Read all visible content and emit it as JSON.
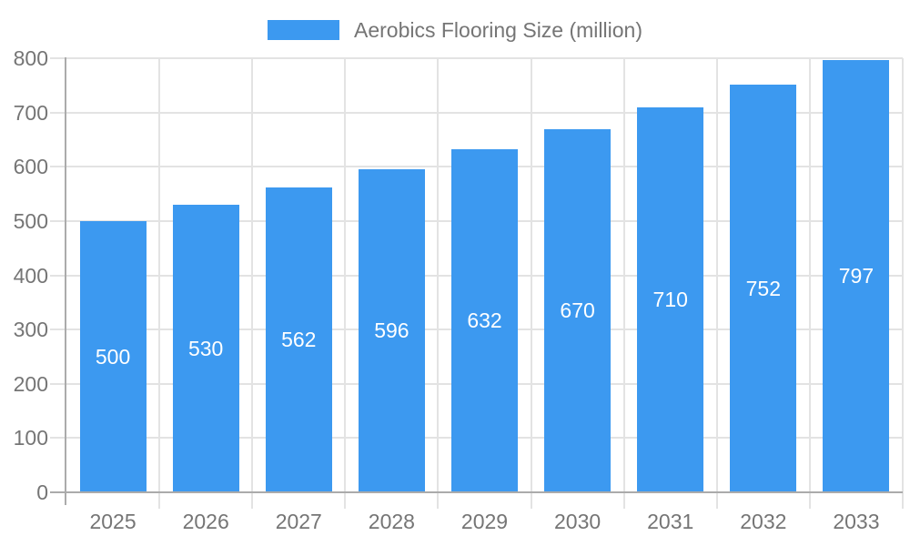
{
  "legend": {
    "label": "Aerobics Flooring Size (million)"
  },
  "chart_data": {
    "type": "bar",
    "title": "Aerobics Flooring Size (million)",
    "categories": [
      "2025",
      "2026",
      "2027",
      "2028",
      "2029",
      "2030",
      "2031",
      "2032",
      "2033"
    ],
    "values": [
      500,
      530,
      562,
      596,
      632,
      670,
      710,
      752,
      797
    ],
    "series": [
      {
        "name": "Aerobics Flooring Size (million)",
        "values": [
          500,
          530,
          562,
          596,
          632,
          670,
          710,
          752,
          797
        ]
      }
    ],
    "xlabel": "",
    "ylabel": "",
    "ylim": [
      0,
      800
    ],
    "yticks": [
      0,
      100,
      200,
      300,
      400,
      500,
      600,
      700,
      800
    ],
    "grid": true,
    "legend_position": "top-center",
    "bar_labels_inside": true
  },
  "colors": {
    "bar": "#3C99F0",
    "axis": "#ABABAB",
    "grid": "#E3E3E3",
    "text": "#757575",
    "value_label": "#FFFFFF",
    "background": "#FFFFFF"
  }
}
